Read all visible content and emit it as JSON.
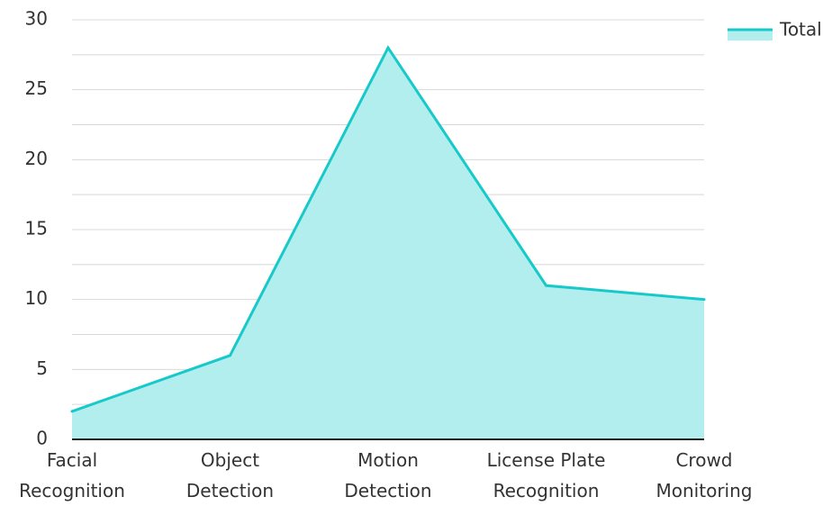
{
  "chart_data": {
    "type": "area",
    "title": "",
    "xlabel": "",
    "ylabel": "",
    "categories": [
      [
        "Facial",
        "Recognition"
      ],
      [
        "Object",
        "Detection"
      ],
      [
        "Motion",
        "Detection"
      ],
      [
        "License Plate",
        "Recognition"
      ],
      [
        "Crowd",
        "Monitoring"
      ]
    ],
    "series": [
      {
        "name": "Total",
        "values": [
          2,
          6,
          28,
          11,
          10
        ]
      }
    ],
    "ylim": [
      0,
      30
    ],
    "yticks": [
      0,
      5,
      10,
      15,
      20,
      25,
      30
    ],
    "grid": true,
    "legend_position": "top-right",
    "colors": {
      "line": "#17C9C9",
      "fill": "#B2EEEE",
      "grid": "#D8D8D8",
      "baseline": "#222222",
      "text": "#333333"
    }
  }
}
